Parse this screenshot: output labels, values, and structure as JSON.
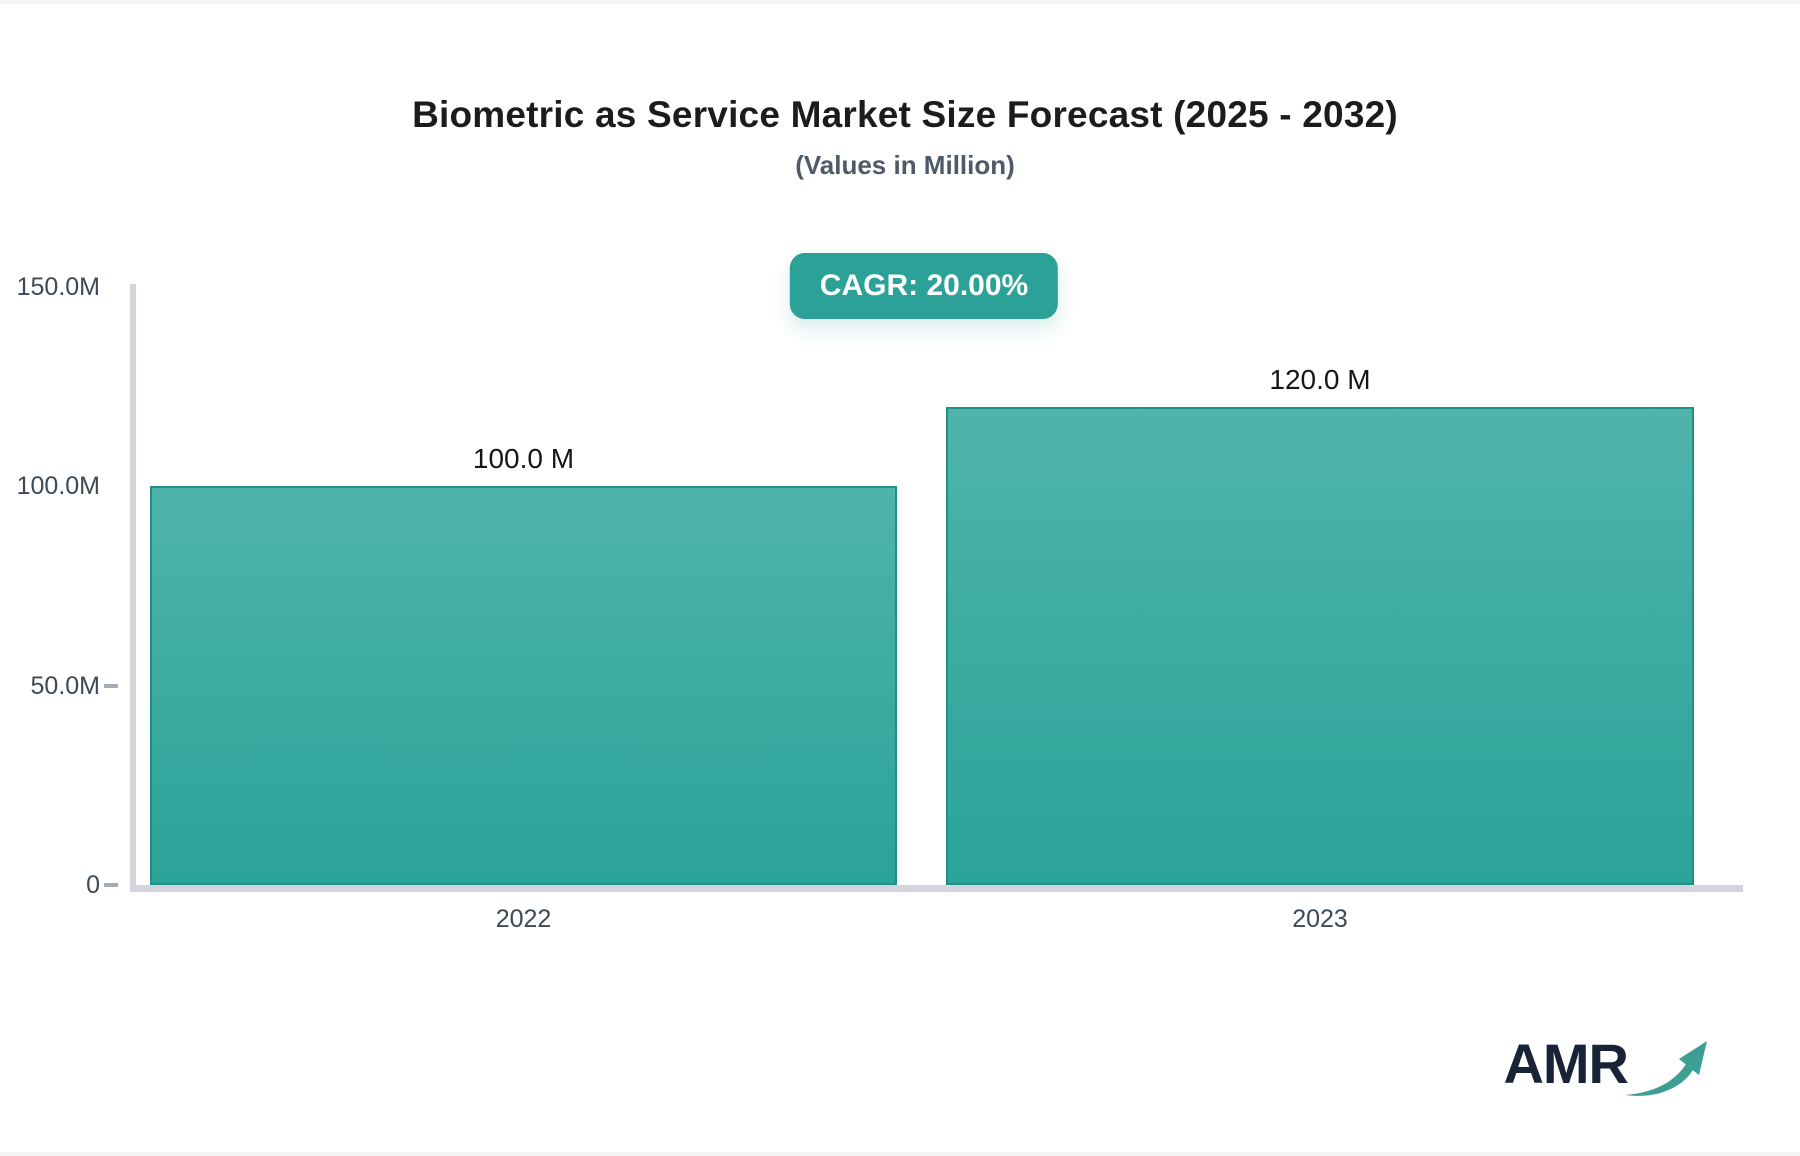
{
  "header": {
    "title": "Biometric as Service Market Size Forecast (2025 - 2032)",
    "subtitle": "(Values in Million)"
  },
  "badge": {
    "label": "CAGR: 20.00%"
  },
  "chart_data": {
    "type": "bar",
    "title": "Biometric as Service Market Size Forecast (2025 - 2032)",
    "subtitle": "(Values in Million)",
    "unit": "Million",
    "cagr_percent": "20.00%",
    "categories": [
      "2022",
      "2023"
    ],
    "values": [
      100.0,
      120.0
    ],
    "value_labels": [
      "100.0 M",
      "120.0 M"
    ],
    "ylim": [
      0,
      150
    ],
    "yticks": [
      {
        "value": 0,
        "label": "0",
        "tick": true
      },
      {
        "value": 50,
        "label": "50.0M",
        "tick": true
      },
      {
        "value": 100,
        "label": "100.0M",
        "tick": false
      },
      {
        "value": 150,
        "label": "150.0M",
        "tick": false
      }
    ],
    "grid": false,
    "legend": false
  },
  "branding": {
    "logo_text": "AMR"
  },
  "colors": {
    "bar_top": "#4fb4ab",
    "bar_bottom": "#2aa399",
    "bar_border": "#1f9086",
    "badge_bg": "#2ba198",
    "badge_text": "#ffffff",
    "axis_line": "#d2d5db",
    "axis_text": "#3e4956",
    "value_text": "#161616",
    "title_text": "#1c1c1c",
    "subtitle_text": "#4e5a68",
    "logo_text": "#182338",
    "logo_arrow": "#3d9e94"
  }
}
